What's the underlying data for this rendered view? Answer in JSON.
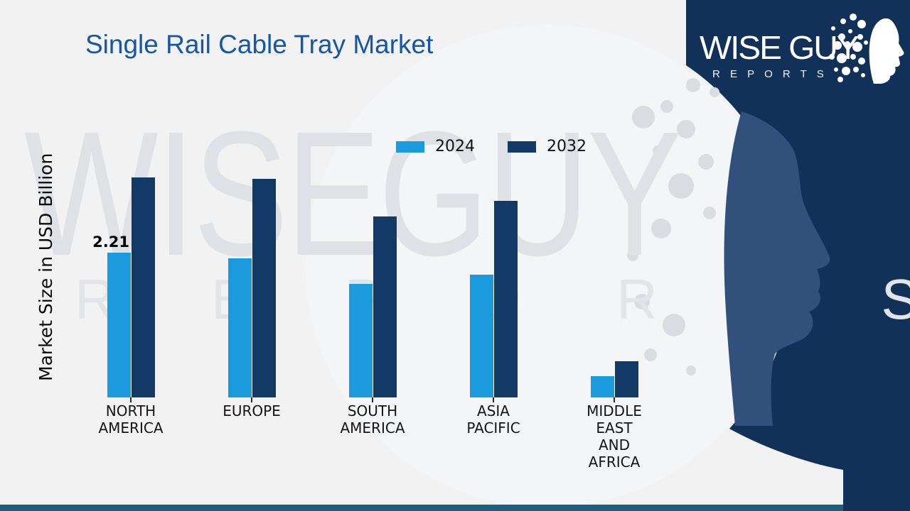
{
  "header": {
    "title": "Single Rail Cable Tray Market",
    "title_color": "#1557a5"
  },
  "brand": {
    "name_top": "WISE GUY",
    "name_bottom": "R E P O R T S",
    "watermark_word": "WISEGUY",
    "watermark_reports": "R E P O R T S",
    "panel_color": "#123159",
    "strip_color": "#1d6080"
  },
  "chart_data": {
    "type": "bar",
    "title": "Single Rail Cable Tray Market",
    "xlabel": "",
    "ylabel": "Market Size in USD Billion",
    "categories": [
      "NORTH AMERICA",
      "EUROPE",
      "SOUTH AMERICA",
      "ASIA PACIFIC",
      "MIDDLE EAST AND AFRICA"
    ],
    "category_lines": [
      [
        "NORTH",
        "AMERICA"
      ],
      [
        "EUROPE"
      ],
      [
        "SOUTH",
        "AMERICA"
      ],
      [
        "ASIA",
        "PACIFIC"
      ],
      [
        "MIDDLE",
        "EAST",
        "AND",
        "AFRICA"
      ]
    ],
    "series": [
      {
        "name": "2024",
        "color": "#1b9add",
        "values": [
          2.21,
          2.12,
          1.73,
          1.87,
          0.33
        ]
      },
      {
        "name": "2032",
        "color": "#133a66",
        "values": [
          3.36,
          3.34,
          2.76,
          3.0,
          0.55
        ]
      }
    ],
    "annotations": [
      {
        "series": "2024",
        "category_index": 0,
        "text": "2.21"
      }
    ],
    "ylim": [
      0,
      3.6
    ],
    "grid": false,
    "legend_position": "top",
    "units": "USD Billion"
  }
}
